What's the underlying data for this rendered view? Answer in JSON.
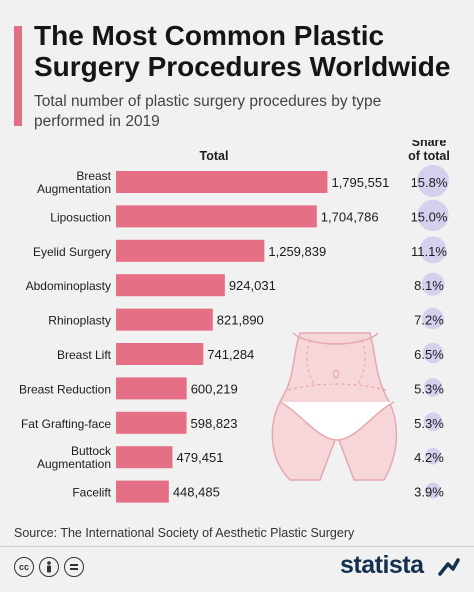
{
  "header": {
    "title": "The Most Common Plastic Surgery Procedures Worldwide",
    "subtitle": "Total number of plastic surgery procedures by type performed in 2019"
  },
  "colors": {
    "bar": "#e56f84",
    "bubble": "#d6d0ee",
    "accent": "#e06f82",
    "brand": "#13304f"
  },
  "chart_data": {
    "type": "bar",
    "orientation": "horizontal",
    "column_headers": {
      "total": "Total",
      "share": [
        "Share",
        "of total"
      ]
    },
    "categories": [
      [
        "Breast",
        "Augmentation"
      ],
      [
        "Liposuction"
      ],
      [
        "Eyelid Surgery"
      ],
      [
        "Abdominoplasty"
      ],
      [
        "Rhinoplasty"
      ],
      [
        "Breast Lift"
      ],
      [
        "Breast Reduction"
      ],
      [
        "Fat Grafting-face"
      ],
      [
        "Buttock",
        "Augmentation"
      ],
      [
        "Facelift"
      ]
    ],
    "values": [
      1795551,
      1704786,
      1259839,
      924031,
      821890,
      741284,
      600219,
      598823,
      479451,
      448485
    ],
    "value_labels": [
      "1,795,551",
      "1,704,786",
      "1,259,839",
      "924,031",
      "821,890",
      "741,284",
      "600,219",
      "598,823",
      "479,451",
      "448,485"
    ],
    "shares": [
      15.8,
      15.0,
      11.1,
      8.1,
      7.2,
      6.5,
      5.3,
      5.3,
      4.2,
      3.9
    ],
    "share_labels": [
      "15.8%",
      "15.0%",
      "11.1%",
      "8.1%",
      "7.2%",
      "6.5%",
      "5.3%",
      "5.3%",
      "4.2%",
      "3.9%"
    ],
    "xlim": [
      0,
      1800000
    ]
  },
  "footer": {
    "source": "Source: The International Society of Aesthetic Plastic Surgery",
    "brand": "statista",
    "license_icons": [
      "cc-icon",
      "by-icon",
      "nd-icon"
    ]
  }
}
